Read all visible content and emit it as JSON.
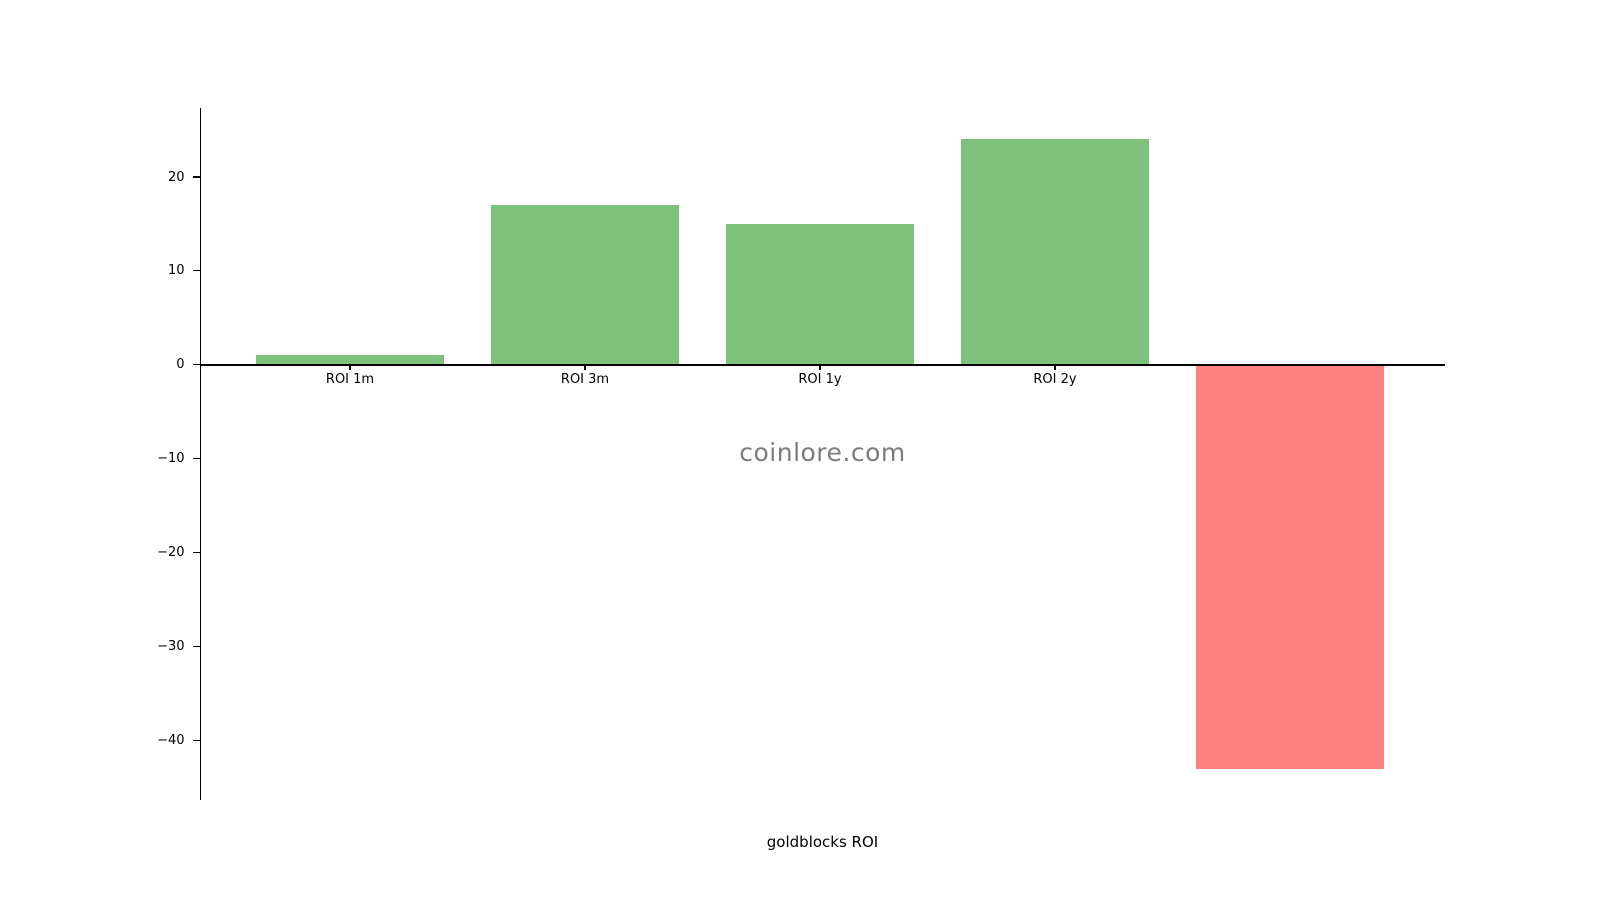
{
  "watermark": {
    "text": "coinlore.com",
    "color": "#7d7d7d"
  },
  "chart_data": {
    "type": "bar",
    "title": "goldblocks ROI",
    "categories": [
      "ROI 1m",
      "ROI 3m",
      "ROI 1y",
      "ROI 2y",
      ""
    ],
    "values": [
      1,
      17,
      15,
      24,
      -43
    ],
    "series": [
      {
        "name": "goldblocks ROI",
        "values": [
          1,
          17,
          15,
          24,
          -43
        ]
      }
    ],
    "xlabel": "",
    "ylabel": "",
    "ylim": [
      -46.35,
      27.35
    ],
    "yticks": [
      20,
      10,
      0,
      -10,
      -20,
      -30,
      -40
    ],
    "ytick_labels": [
      "20",
      "10",
      "0",
      "−10",
      "−20",
      "−30",
      "−40"
    ],
    "grid": false,
    "legend": null,
    "positive_color": "#7dc17d",
    "negative_color": "#fd8181",
    "axis_color": "#000000"
  }
}
